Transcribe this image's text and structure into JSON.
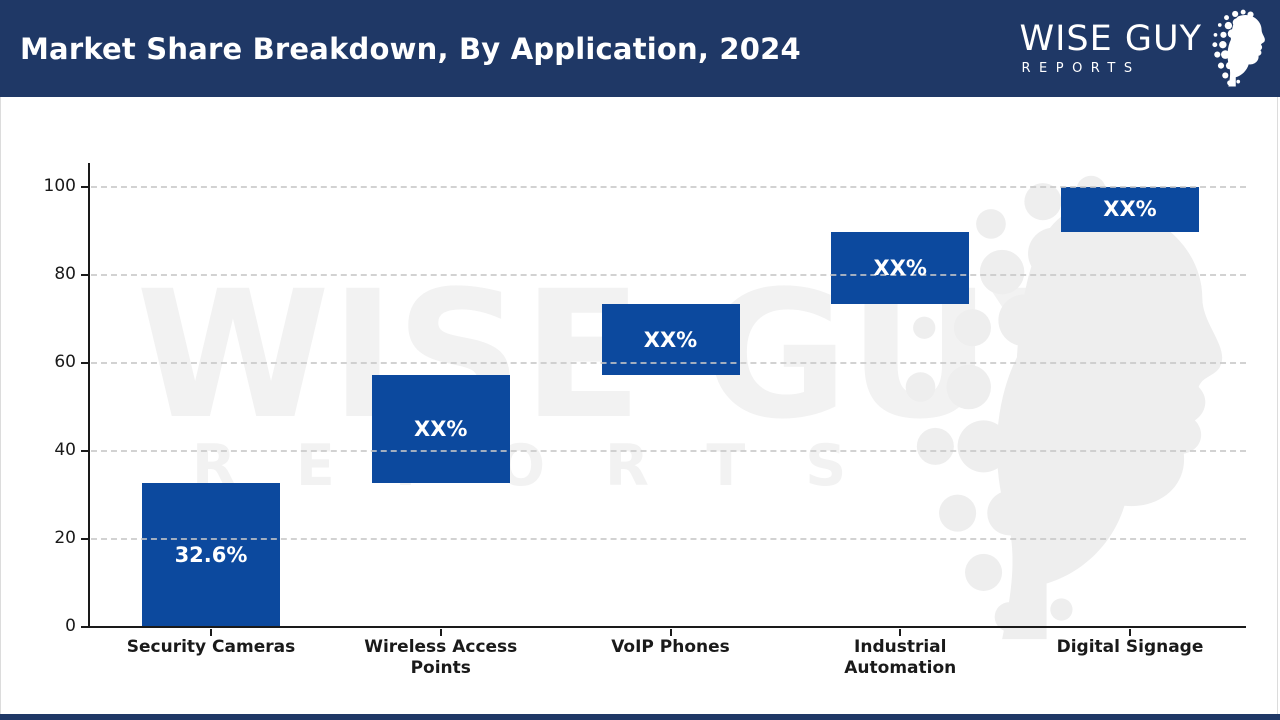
{
  "header": {
    "title": "Market Share Breakdown, By Application, 2024",
    "logo": {
      "line1": "WISE GUY",
      "line2": "REPORTS"
    }
  },
  "watermark": {
    "line1": "WISE GUY",
    "line2": "REPORTS"
  },
  "chart_data": {
    "type": "bar",
    "subtype": "waterfall",
    "title": "Market Share Breakdown, By Application, 2024",
    "categories": [
      "Security Cameras",
      "Wireless Access Points",
      "VoIP Phones",
      "Industrial Automation",
      "Digital Signage"
    ],
    "series": [
      {
        "name": "Market Share (%)",
        "segments": [
          {
            "category": "Security Cameras",
            "start": 0,
            "end": 32.6,
            "label": "32.6%"
          },
          {
            "category": "Wireless Access Points",
            "start": 32.6,
            "end": 57.2,
            "label": "XX%"
          },
          {
            "category": "VoIP Phones",
            "start": 57.2,
            "end": 73.3,
            "label": "XX%"
          },
          {
            "category": "Industrial Automation",
            "start": 73.3,
            "end": 89.7,
            "label": "XX%"
          },
          {
            "category": "Digital Signage",
            "start": 89.7,
            "end": 100,
            "label": "XX%"
          }
        ]
      }
    ],
    "xlabel": "",
    "ylabel": "",
    "ylim": [
      0,
      105
    ],
    "yticks": [
      0,
      20,
      40,
      60,
      80,
      100
    ],
    "grid": true,
    "legend": false,
    "bar_color": "#0c499e",
    "bar_label_color": "#ffffff"
  },
  "colors": {
    "header_bg": "#1f3866",
    "footer_bg": "#1f3866",
    "card_border": "#dcdcdc",
    "axis": "#1a1a1a",
    "grid": "#c8c8c8",
    "watermark": "#f2f2f2"
  }
}
